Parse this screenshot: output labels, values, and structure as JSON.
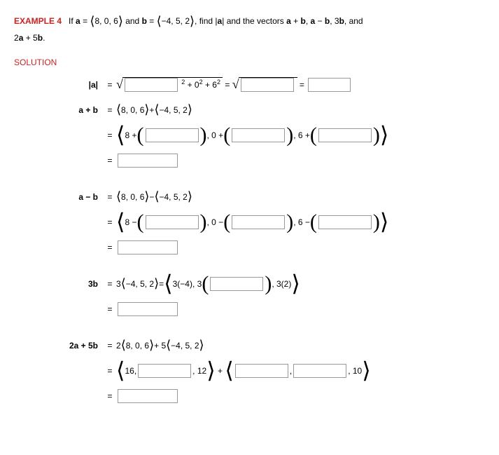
{
  "example_label": "EXAMPLE 4",
  "prompt_parts": {
    "if": "If",
    "a_eq": "a",
    "a_vec_open": "= ⟨8, 0, 6⟩",
    "and": "and",
    "b_eq": "b",
    "b_vec": "= ⟨−4, 5, 2⟩,",
    "find": "find",
    "mag_a": "|a|",
    "vectors_text": "and the vectors",
    "ab": "a + b",
    "comma1": ",",
    "amb": "a − b",
    "comma2": ",",
    "threeb": "3b",
    "comma3": ", and",
    "twoa5b": "2a + 5b",
    "period": "."
  },
  "solution_label": "SOLUTION",
  "rows": {
    "maga": {
      "lhs": "|a|",
      "after_sq": "+ 0",
      "exp2": "2",
      "plus62": "+ 6",
      "eq2": "="
    },
    "aplusb": {
      "lhs": "a + b",
      "line1": "⟨8, 0, 6⟩ + ⟨−4, 5, 2⟩",
      "c1": "8 +",
      "c2": ", 0 +",
      "c3": ", 6 +"
    },
    "aminusb": {
      "lhs": "a − b",
      "line1": "⟨8, 0, 6⟩ − ⟨−4, 5, 2⟩",
      "c1": "8 −",
      "c2": ", 0 −",
      "c3": ", 6 −"
    },
    "threeb": {
      "lhs": "3b",
      "line1a": "3⟨−4, 5, 2⟩ =",
      "p1": "3(−4), 3",
      "p2": ", 3(2)"
    },
    "twoa5b": {
      "lhs": "2a + 5b",
      "line1": "2⟨8, 0, 6⟩ + 5⟨−4, 5, 2⟩",
      "p1": "16,",
      "p12": ", 12",
      "plus": "+",
      "p2c": ",",
      "p2e": ", 10"
    }
  }
}
